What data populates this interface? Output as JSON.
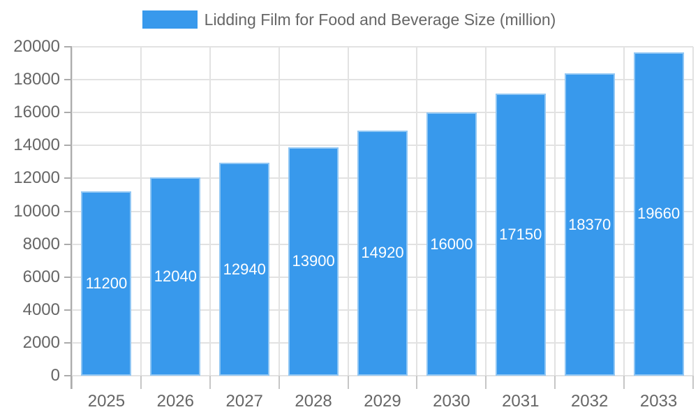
{
  "legend": {
    "label": "Lidding Film for Food and Beverage Size (million)"
  },
  "chart_data": {
    "type": "bar",
    "title": "Lidding Film for Food and Beverage Size (million)",
    "categories": [
      "2025",
      "2026",
      "2027",
      "2028",
      "2029",
      "2030",
      "2031",
      "2032",
      "2033"
    ],
    "values": [
      11200,
      12040,
      12940,
      13900,
      14920,
      16000,
      17150,
      18370,
      19660
    ],
    "xlabel": "",
    "ylabel": "",
    "ylim": [
      0,
      20000
    ],
    "ytick_step": 2000,
    "ytick_labels": [
      "0",
      "2000",
      "4000",
      "6000",
      "8000",
      "10000",
      "12000",
      "14000",
      "16000",
      "18000",
      "20000"
    ],
    "grid": true,
    "legend_position": "top-center",
    "value_labels": "inside-center",
    "colors": {
      "bar_fill": "#3899EC",
      "bar_border": "rgba(255,255,255,0.45)",
      "value_label": "#FFFFFF",
      "axis_text": "#666666",
      "gridline": "#E2E2E2",
      "axis_line": "#ABABAB",
      "x_tick": "#C6C6C6",
      "background": "#FFFFFF"
    }
  }
}
